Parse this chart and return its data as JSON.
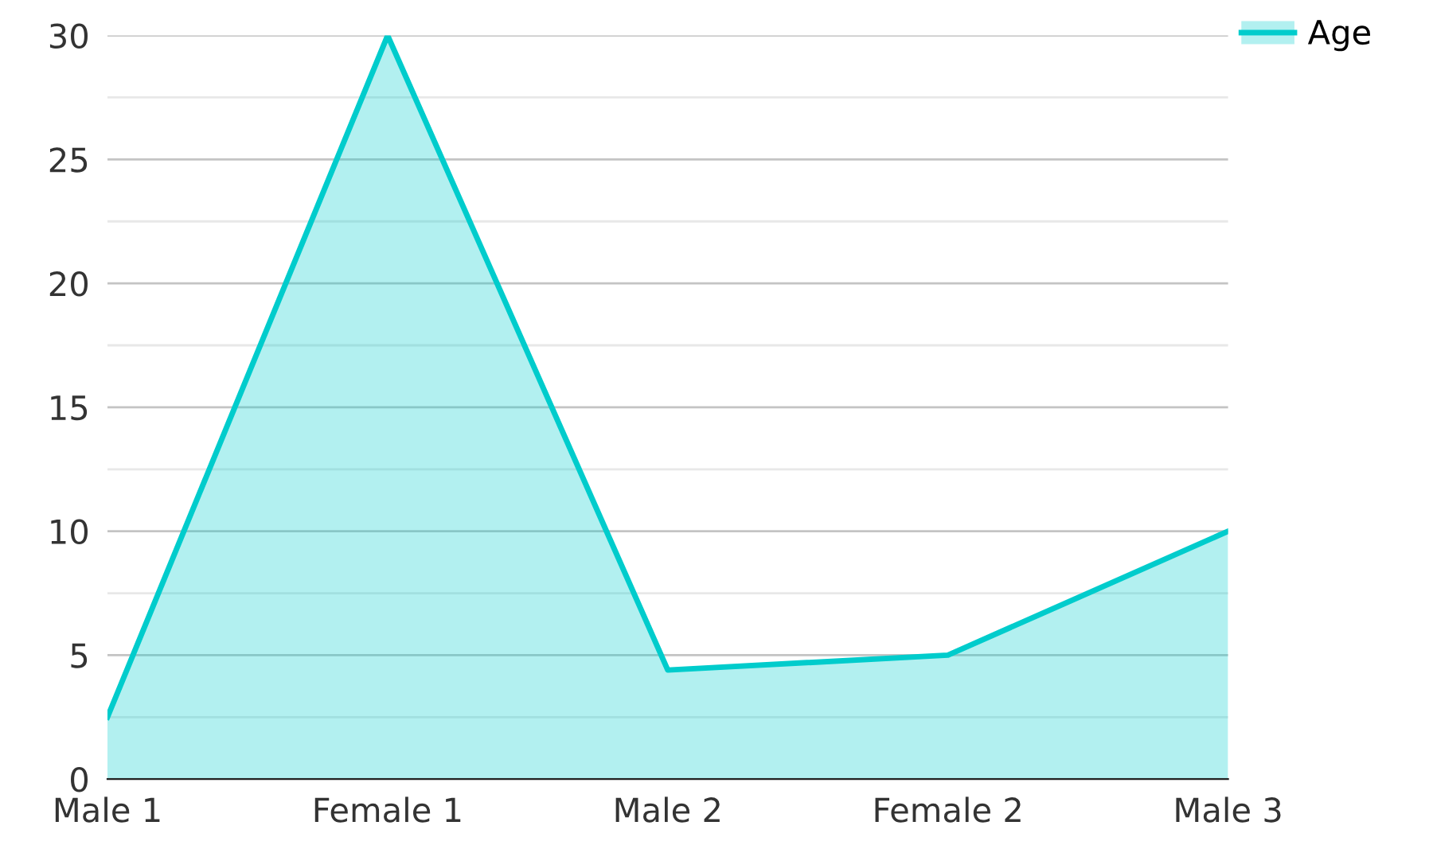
{
  "chart_data": {
    "type": "area",
    "categories": [
      "Male 1",
      "Female 1",
      "Male 2",
      "Female 2",
      "Male 3"
    ],
    "series": [
      {
        "name": "Age",
        "color": "#00cccc",
        "values": [
          2.5,
          30,
          4.4,
          5,
          10
        ]
      }
    ],
    "ylim": [
      0,
      30
    ],
    "yticks": [
      0,
      {
        "value": 2.5,
        "label": null
      },
      5,
      {
        "value": 7.5,
        "label": null
      },
      10,
      {
        "value": 12.5,
        "label": null
      },
      15,
      {
        "value": 17.5,
        "label": null
      },
      20,
      {
        "value": 22.5,
        "label": null
      },
      25,
      {
        "value": 27.5,
        "label": null
      },
      30
    ],
    "grid": "y",
    "legend": "top right"
  }
}
